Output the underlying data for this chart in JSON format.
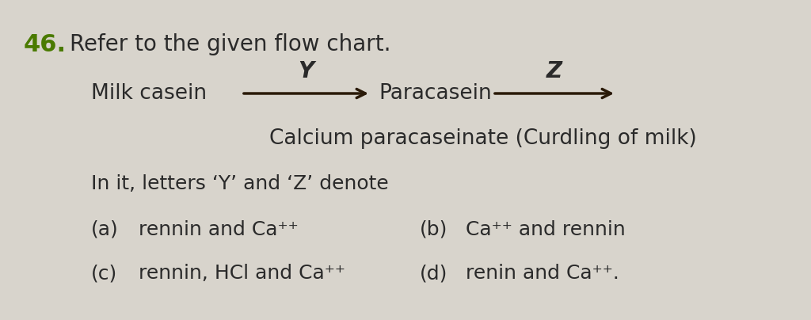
{
  "background_color": "#d8d4cc",
  "question_number": "46.",
  "question_text": "Refer to the given flow chart.",
  "flow_line1_left": "Milk casein",
  "flow_line1_label_y": "Y",
  "flow_line1_mid": "Paracasein",
  "flow_line1_label_z": "Z",
  "flow_line2": "Calcium paracaseinate (Curdling of milk)",
  "question_body": "In it, letters ‘Y’ and ‘Z’ denote",
  "opt_a_label": "(a)",
  "opt_a_text": "rennin and Ca⁺⁺",
  "opt_b_label": "(b)",
  "opt_b_text": "Ca⁺⁺ and rennin",
  "opt_c_label": "(c)",
  "opt_c_text": "rennin, HCl and Ca⁺⁺",
  "opt_d_label": "(d)",
  "opt_d_text": "renin and Ca⁺⁺.",
  "text_color": "#2a2a2a",
  "number_color": "#4a7a00",
  "arrow_color": "#2a1a08",
  "font_size_number": 22,
  "font_size_question": 20,
  "font_size_flow": 19,
  "font_size_label": 20,
  "font_size_options": 18
}
